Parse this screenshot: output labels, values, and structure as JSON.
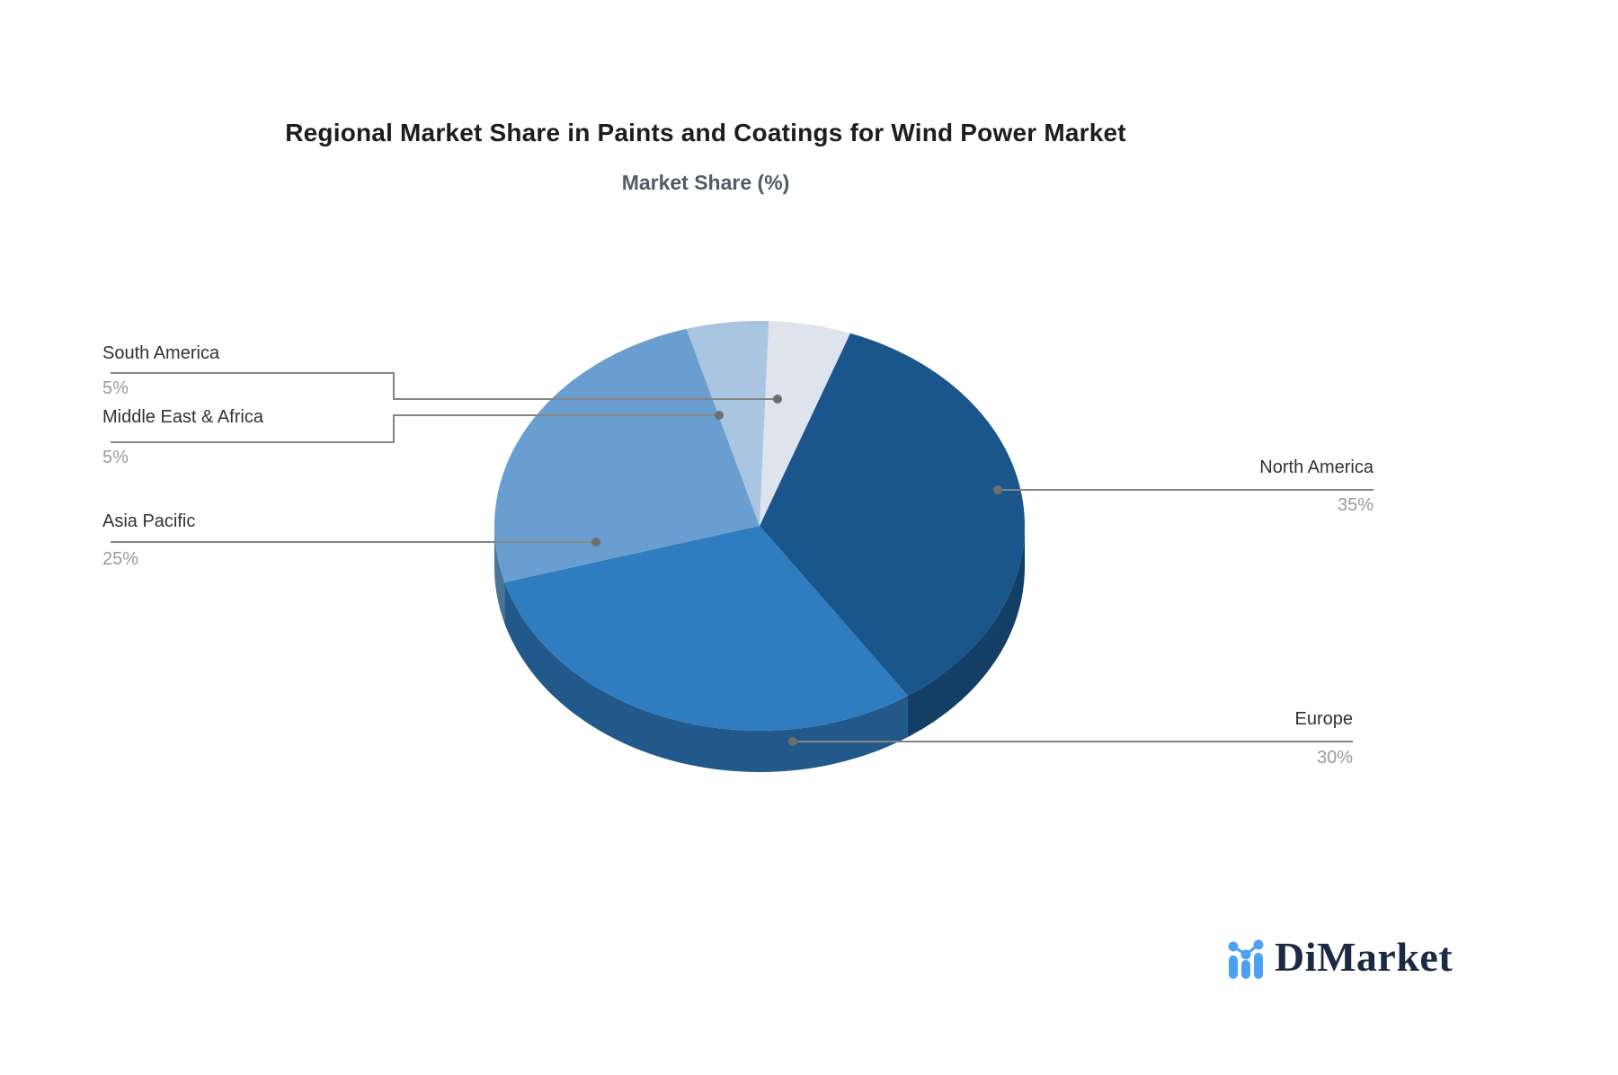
{
  "title": "Regional Market Share in Paints and Coatings for Wind Power Market",
  "subtitle": "Market Share (%)",
  "chart_data": {
    "type": "pie",
    "style": "3d",
    "title": "Regional Market Share in Paints and Coatings for Wind Power Market",
    "subtitle": "Market Share (%)",
    "unit": "%",
    "legend_position": "none",
    "labels": "outside-with-connector-lines",
    "start_angle_deg": 20,
    "slices": [
      {
        "label": "North America",
        "value": 35,
        "pct_label": "35%",
        "color": "#1A568C"
      },
      {
        "label": "Europe",
        "value": 30,
        "pct_label": "30%",
        "color": "#2F7CC0"
      },
      {
        "label": "Asia Pacific",
        "value": 25,
        "pct_label": "25%",
        "color": "#6A9ED1"
      },
      {
        "label": "Middle East & Africa",
        "value": 5,
        "pct_label": "5%",
        "color": "#A9C5E1"
      },
      {
        "label": "South America",
        "value": 5,
        "pct_label": "5%",
        "color": "#DDE4EE"
      }
    ]
  },
  "colors": {
    "background": "#FFFFFF",
    "title": "#1D1D1D",
    "subtitle": "#515B66",
    "label_name": "#323232",
    "label_value": "#9B9B9B",
    "connector_line": "#848484",
    "connector_dot": "#6E6E6E",
    "logo_blue": "#4DA1F4",
    "logo_navy": "#1B2A44"
  },
  "watermark": {
    "brand": "DiMarket",
    "icon": "bar-line-chart-logo"
  }
}
